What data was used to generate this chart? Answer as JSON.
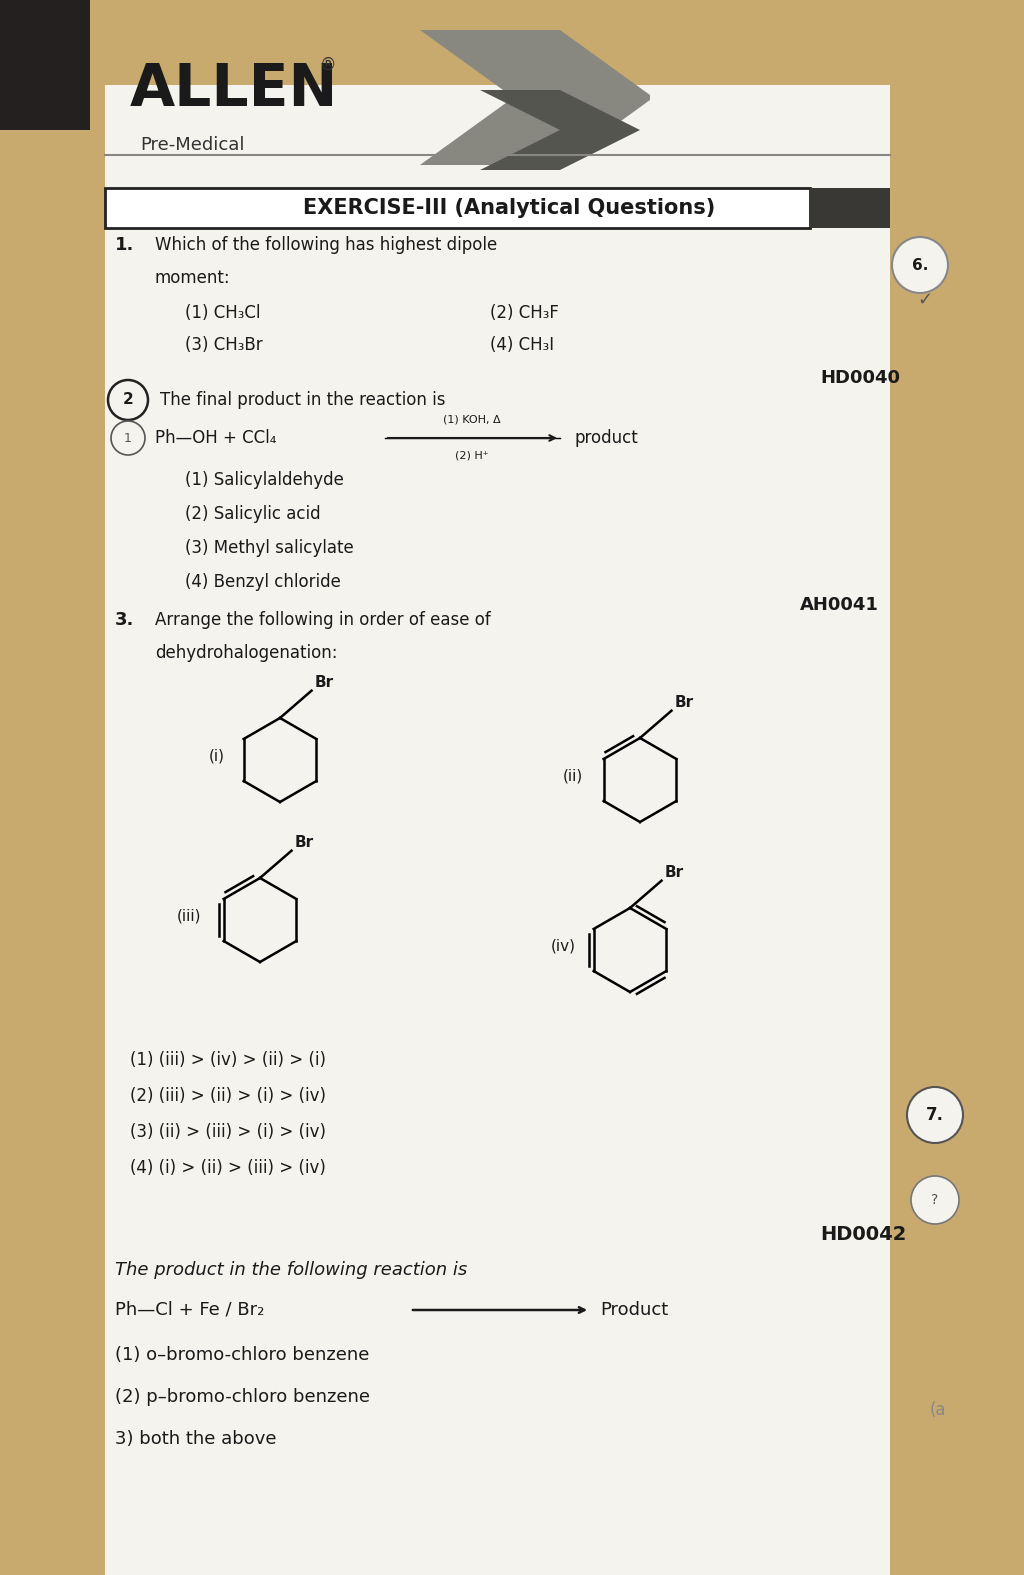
{
  "bg_color": "#c8a96e",
  "paper_color": "#f5f3ee",
  "header_color": "#f0eeea",
  "allen_text": "ALLEN",
  "allen_reg": "®",
  "pre_medical": "Pre-Medical",
  "exercise_title": "EXERCISE-III (Analytical Questions)",
  "q1_number": "1.",
  "q1_line1": "Which of the following has highest dipole",
  "q1_line2": "moment:",
  "q1_opt1": "(1) CH₃Cl",
  "q1_opt2": "(2) CH₃F",
  "q1_opt3": "(3) CH₃Br",
  "q1_opt4": "(4) CH₃I",
  "q1_code": "HD0040",
  "side_6": "6.",
  "q2_text": "The final product in the reaction is",
  "q2_reaction_left": "Ph—OH + CCl₄",
  "q2_reaction_above": "(1) KOH, Δ",
  "q2_reaction_below": "(2) H⁺",
  "q2_reaction_right": "product",
  "q2_opt1": "(1) Salicylaldehyde",
  "q2_opt2": "(2) Salicylic acid",
  "q2_opt3": "(3) Methyl salicylate",
  "q2_opt4": "(4) Benzyl chloride",
  "q3_number": "3.",
  "q3_code": "AH0041",
  "q3_line1": "Arrange the following in order of ease of",
  "q3_line2": "dehydrohalogenation:",
  "q3_opt1": "(1) (iii) > (iv) > (ii) > (i)",
  "q3_opt2": "(2) (iii) > (ii) > (i) > (iv)",
  "q3_opt3": "(3) (ii) > (iii) > (i) > (iv)",
  "q3_opt4": "(4) (i) > (ii) > (iii) > (iv)",
  "side_7": "7.",
  "q4_code": "HD0042",
  "q4_intro": "The product in the following reaction is",
  "q4_react_left": "Ph—Cl + Fe / Br₂",
  "q4_react_right": "Product",
  "q4_opt1": "(1) o–bromo-chloro benzene",
  "q4_opt2": "(2) p–bromo-chloro benzene",
  "q4_opt3": "3) both the above"
}
